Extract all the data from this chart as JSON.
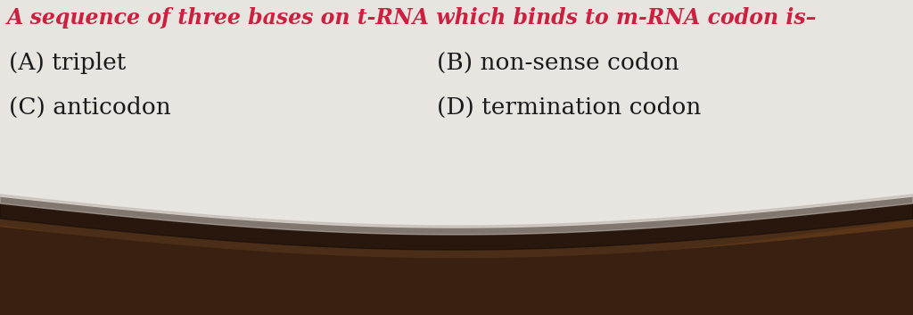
{
  "title_line": "A sequence of three bases on t-RNA which binds to m-RNA codon is–",
  "title_color": "#cc2040",
  "option_A": "(A) triplet",
  "option_B": "(B) non-sense codon",
  "option_C": "(C) anticodon",
  "option_D": "(D) termination codon",
  "option_color": "#1a1a1a",
  "page_color": "#e8e4e0",
  "wood_dark": "#2a1a0e",
  "wood_mid": "#4a2e18",
  "wood_light": "#6b4020",
  "fig_width": 10.24,
  "fig_height": 3.53,
  "title_fontsize": 17,
  "option_fontsize": 19
}
